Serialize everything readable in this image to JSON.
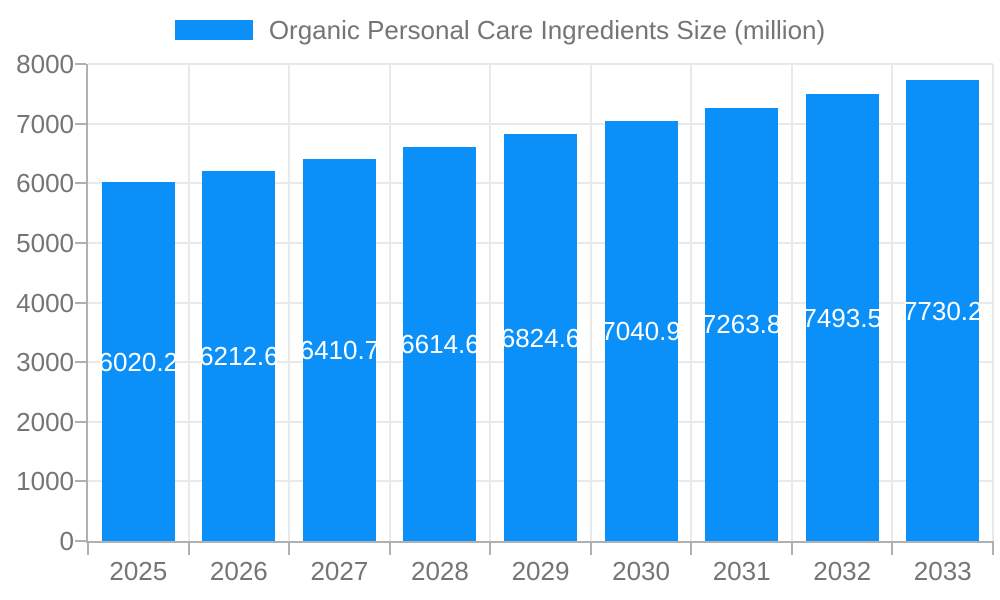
{
  "legend": {
    "label": "Organic Personal Care Ingredients Size (million)"
  },
  "chart_data": {
    "type": "bar",
    "title": "Organic Personal Care Ingredients Size (million)",
    "categories": [
      "2025",
      "2026",
      "2027",
      "2028",
      "2029",
      "2030",
      "2031",
      "2032",
      "2033"
    ],
    "values": [
      6020.2,
      6212.6,
      6410.7,
      6614.6,
      6824.6,
      7040.9,
      7263.8,
      7493.5,
      7730.2
    ],
    "value_labels": [
      "6020.2",
      "6212.6",
      "6410.7",
      "6614.6",
      "6824.6",
      "7040.9",
      "7263.8",
      "7493.5",
      "7730.2"
    ],
    "xlabel": "",
    "ylabel": "",
    "ylim": [
      0,
      8000
    ],
    "yticks": [
      0,
      1000,
      2000,
      3000,
      4000,
      5000,
      6000,
      7000,
      8000
    ],
    "grid": true,
    "legend_position": "top-center",
    "colors": {
      "bar": "#0a90f8",
      "value_text": "#ffffff",
      "axis_text": "#757575",
      "legend_text": "#757575",
      "gridline": "#e9e9e9",
      "axis_line": "#b0b0b0",
      "background": "#ffffff"
    }
  }
}
